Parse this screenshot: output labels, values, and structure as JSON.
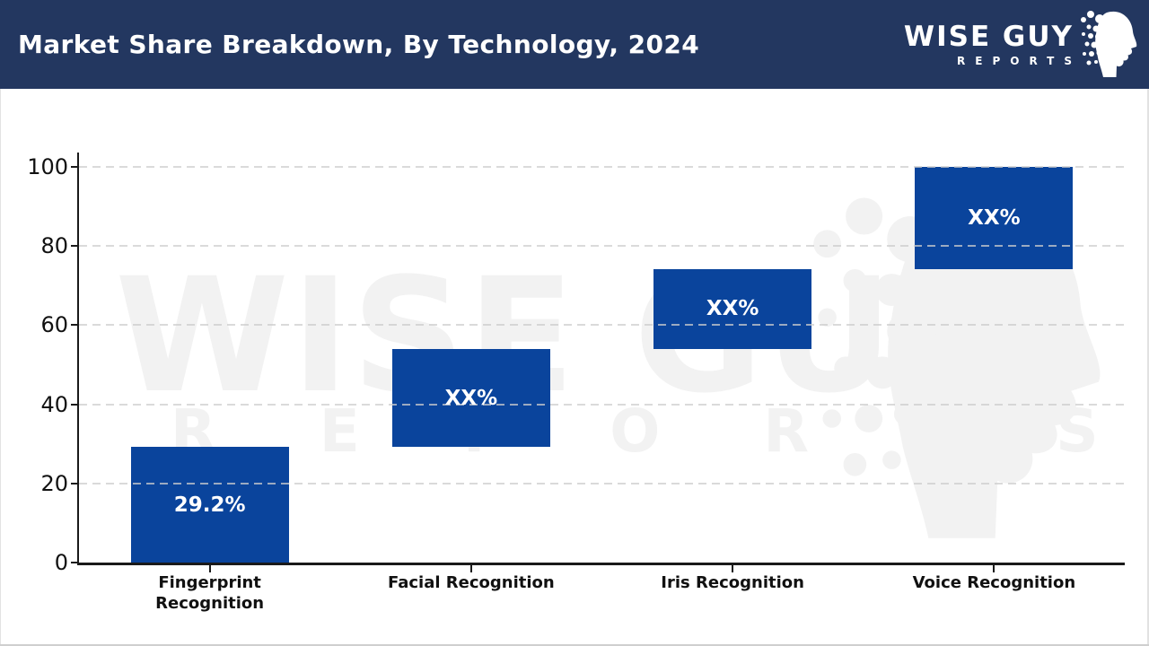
{
  "header": {
    "title": "Market Share Breakdown, By Technology, 2024",
    "logo": {
      "name": "WISE GUY",
      "sub": "REPORTS"
    }
  },
  "watermark": {
    "line1": "WISE GUY",
    "line2": "R E P O R T S"
  },
  "colors": {
    "header_bg": "#233760",
    "bar": "#0a449c",
    "bar_label": "#ffffff",
    "axis": "#1a1a1a",
    "gridline": "#d9d9d9",
    "watermark": "#f2f2f2"
  },
  "chart_data": {
    "type": "bar",
    "subtype": "stacked-waterfall",
    "title": "Market Share Breakdown, By Technology, 2024",
    "categories": [
      "Fingerprint\nRecognition",
      "Facial Recognition",
      "Iris Recognition",
      "Voice Recognition"
    ],
    "bars": [
      {
        "category": "Fingerprint Recognition",
        "start": 0,
        "end": 29.2,
        "label": "29.2%",
        "value": 29.2
      },
      {
        "category": "Facial Recognition",
        "start": 29.2,
        "end": 54.0,
        "label": "XX%",
        "value": 24.8
      },
      {
        "category": "Iris Recognition",
        "start": 54.0,
        "end": 74.2,
        "label": "XX%",
        "value": 20.2
      },
      {
        "category": "Voice Recognition",
        "start": 74.2,
        "end": 100,
        "label": "XX%",
        "value": 25.8
      }
    ],
    "y_ticks": [
      0,
      20,
      40,
      60,
      80,
      100
    ],
    "ylim": [
      0,
      100
    ],
    "xlabel": "",
    "ylabel": "",
    "grid": true,
    "grid_style": "dashed",
    "legend": false,
    "bar_color": "#0a449c"
  }
}
